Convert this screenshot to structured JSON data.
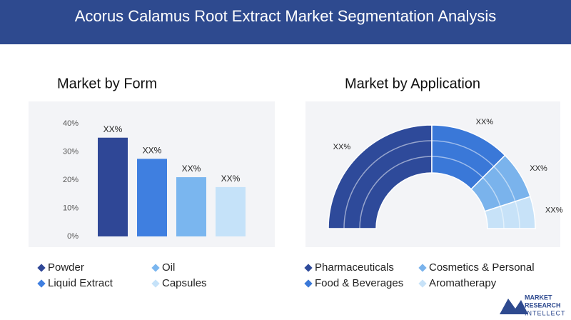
{
  "header": {
    "title": "Acorus Calamus Root Extract Market Segmentation Analysis"
  },
  "chart_data": [
    {
      "type": "bar",
      "title": "Market by Form",
      "categories": [
        "Powder",
        "Liquid Extract",
        "Oil",
        "Capsules"
      ],
      "values": [
        35,
        27.5,
        21,
        17.5
      ],
      "value_labels": [
        "XX%",
        "XX%",
        "XX%",
        "XX%"
      ],
      "colors": [
        "#2f4796",
        "#3f7fe0",
        "#7ab6ef",
        "#c5e2f9"
      ],
      "ylim": [
        0,
        40
      ],
      "yticks": [
        {
          "value": 0,
          "label": "0%"
        },
        {
          "value": 10,
          "label": "10%"
        },
        {
          "value": 20,
          "label": "20%"
        },
        {
          "value": 30,
          "label": "30%"
        },
        {
          "value": 40,
          "label": "40%"
        }
      ],
      "grid": false
    },
    {
      "type": "donut",
      "title": "Market by Application",
      "categories": [
        "Pharmaceuticals",
        "Food & Beverages",
        "Cosmetics & Personal",
        "Aromatherapy"
      ],
      "values": [
        50,
        25,
        15,
        10
      ],
      "value_labels": [
        "XX%",
        "XX%",
        "XX%",
        "XX%"
      ],
      "colors": [
        "#2e4a9a",
        "#3a78d8",
        "#7ab3ec",
        "#c7e2f8"
      ]
    }
  ],
  "logo": {
    "lines": [
      "MARKET",
      "RESEARCH",
      "INTELLECT"
    ]
  }
}
